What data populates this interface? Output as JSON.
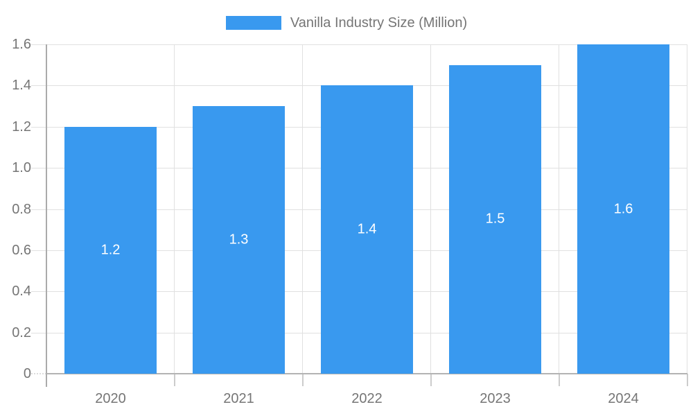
{
  "legend": {
    "label": "Vanilla Industry Size (Million)",
    "position": "top"
  },
  "colors": {
    "bar": "#3999EF",
    "bar_label_text": "#ffffff",
    "axis_text": "#757575",
    "gridline": "#e0e0e0",
    "axis_line": "#ababab",
    "below_tick": "#cccccc",
    "background": "#ffffff"
  },
  "chart_data": {
    "type": "bar",
    "title": "",
    "xlabel": "",
    "ylabel": "",
    "categories": [
      "2020",
      "2021",
      "2022",
      "2023",
      "2024"
    ],
    "series": [
      {
        "name": "Vanilla Industry Size (Million)",
        "color": "#3999EF",
        "values": [
          1.2,
          1.3,
          1.4,
          1.5,
          1.6
        ]
      }
    ],
    "bar_value_labels": [
      "1.2",
      "1.3",
      "1.4",
      "1.5",
      "1.6"
    ],
    "ylim": [
      0,
      1.6
    ],
    "yticks": [
      0,
      0.2,
      0.4,
      0.6,
      0.8,
      1.0,
      1.2,
      1.4,
      1.6
    ],
    "ytick_labels": [
      "0",
      "0.2",
      "0.4",
      "0.6",
      "0.8",
      "1.0",
      "1.2",
      "1.4",
      "1.6"
    ],
    "grid": true,
    "legend_position": "top"
  }
}
